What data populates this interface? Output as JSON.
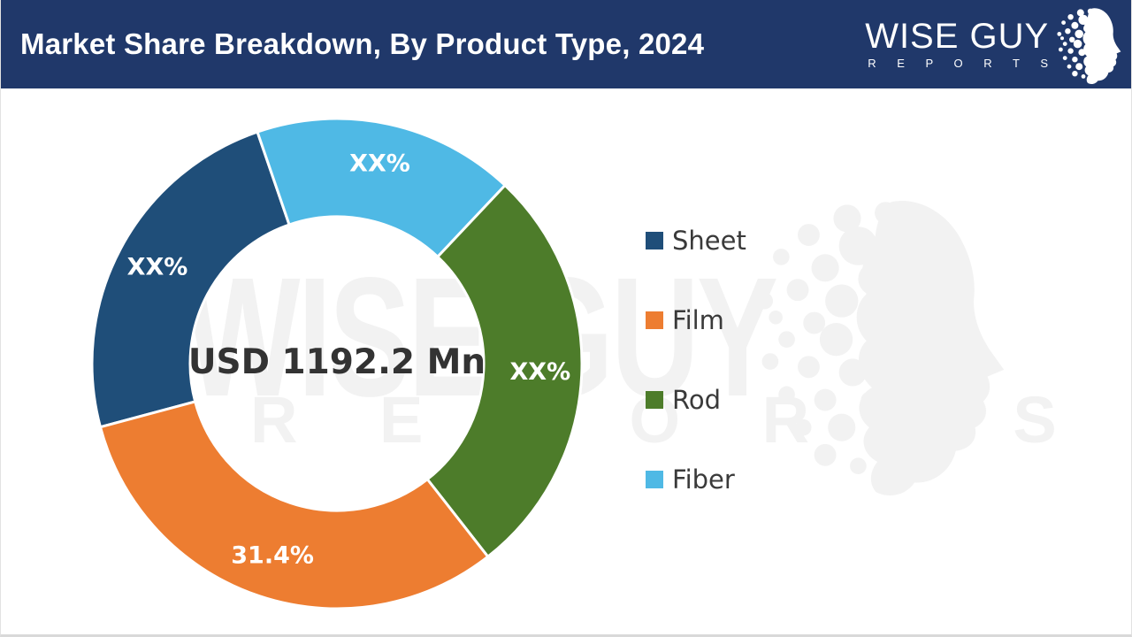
{
  "header": {
    "title": "Market Share Breakdown, By Product Type, 2024",
    "logo": {
      "brand": "WISE GUY",
      "tagline": "R E P O R T S"
    }
  },
  "watermark": {
    "brand": "WISE GUY",
    "tagline": "R E P O R T S"
  },
  "chart_data": {
    "type": "pie",
    "variant": "donut",
    "title": "Market Share Breakdown, By Product Type, 2024",
    "center_label": "USD 1192.2 Mn",
    "value_unit": "percent of market share",
    "slices": [
      {
        "label": "Sheet",
        "value_pct": 23.9,
        "display_label": "XX%",
        "color": "#1f4e79"
      },
      {
        "label": "Film",
        "value_pct": 31.4,
        "display_label": "31.4%",
        "color": "#ed7d31"
      },
      {
        "label": "Rod",
        "value_pct": 27.4,
        "display_label": "XX%",
        "color": "#4d7c2a"
      },
      {
        "label": "Fiber",
        "value_pct": 17.3,
        "display_label": "XX%",
        "color": "#4fb9e5"
      }
    ],
    "legend": {
      "position": "right",
      "items": [
        "Sheet",
        "Film",
        "Rod",
        "Fiber"
      ]
    },
    "layout": {
      "start_angle_deg": 195,
      "direction": "clockwise",
      "draw_order": [
        "Sheet",
        "Fiber",
        "Rod",
        "Film"
      ],
      "inner_radius_ratio": 0.6,
      "slice_label_color": "#ffffff"
    }
  },
  "colors": {
    "header_bg": "#20386a",
    "canvas_bg": "#ffffff",
    "watermark": "#f2f2f2",
    "center_text": "#333333",
    "legend_text": "#3a3a3a"
  }
}
